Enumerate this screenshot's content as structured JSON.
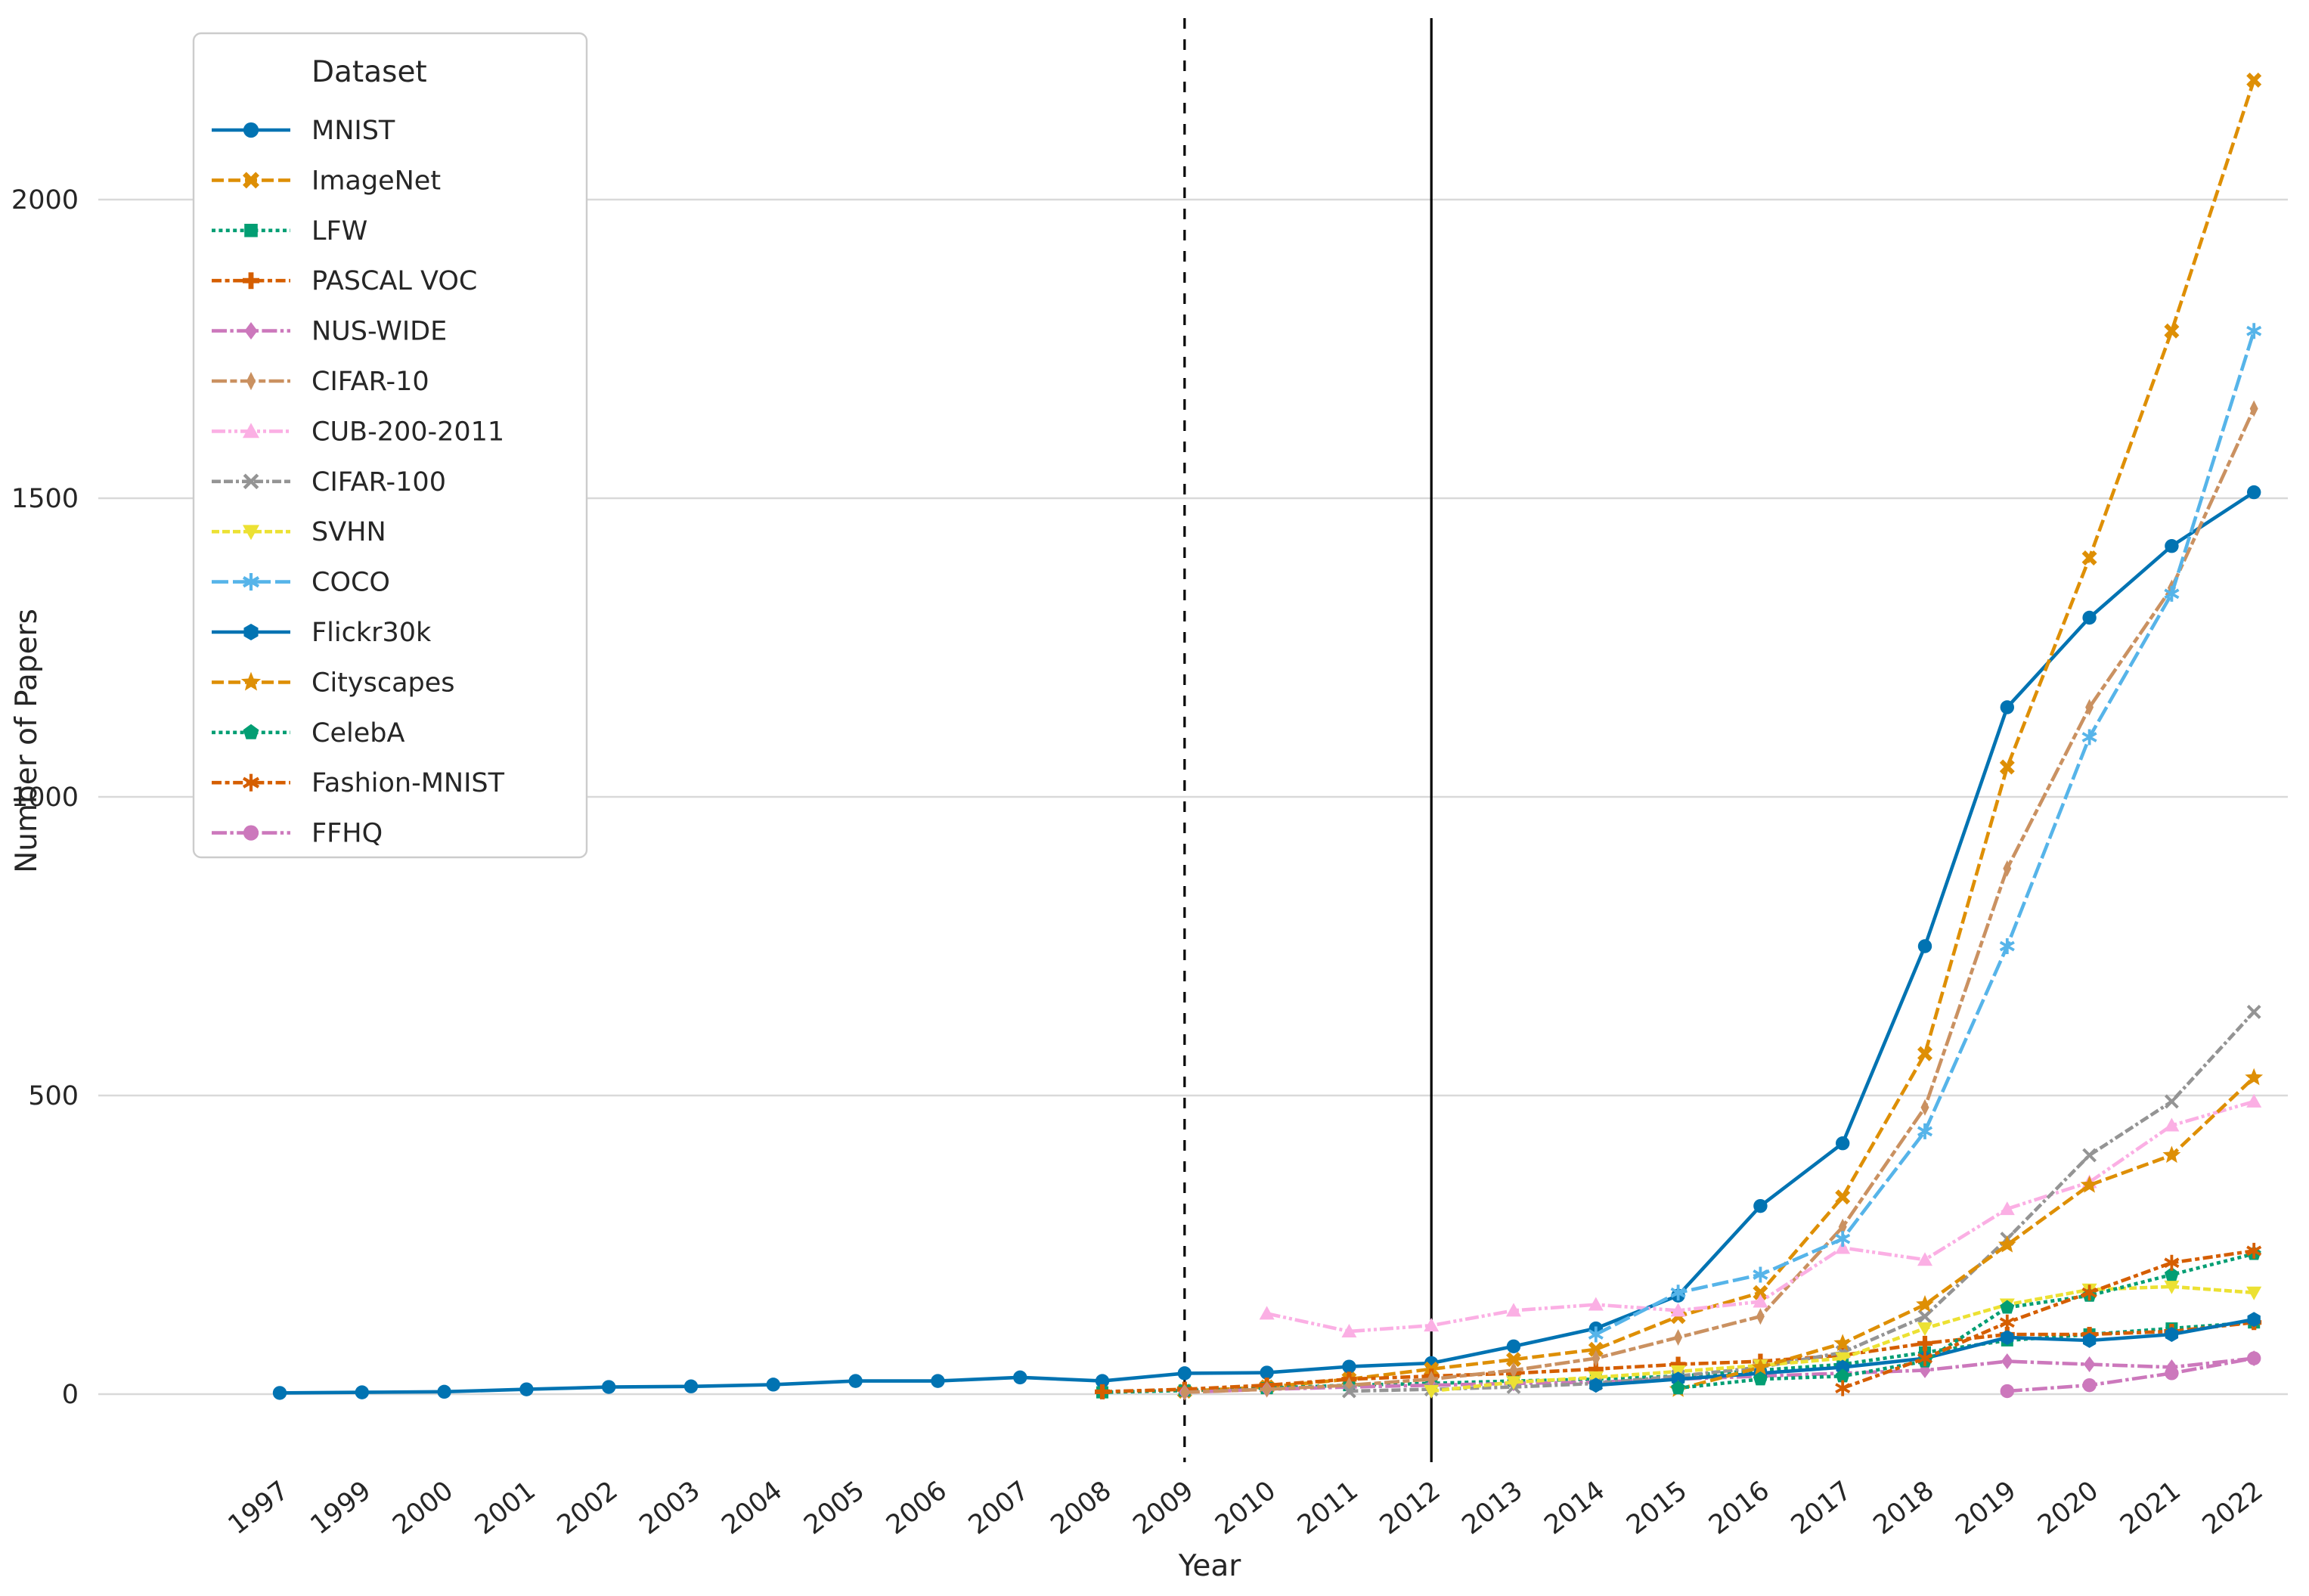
{
  "chart_data": {
    "type": "line",
    "title": "",
    "xlabel": "Year",
    "ylabel": "Number of Papers",
    "legend_title": "Dataset",
    "legend_position": "upper left",
    "grid": "horizontal",
    "x": [
      "1997",
      "1999",
      "2000",
      "2001",
      "2002",
      "2003",
      "2004",
      "2005",
      "2006",
      "2007",
      "2008",
      "2009",
      "2010",
      "2011",
      "2012",
      "2013",
      "2014",
      "2015",
      "2016",
      "2017",
      "2018",
      "2019",
      "2020",
      "2021",
      "2022"
    ],
    "yticks": [
      0,
      500,
      1000,
      1500,
      2000
    ],
    "ylim": [
      -110,
      2320
    ],
    "vlines": [
      {
        "x": "2009",
        "style": "dashed",
        "color": "#000000"
      },
      {
        "x": "2012",
        "style": "solid",
        "color": "#000000"
      }
    ],
    "style": {
      "background": "#ffffff",
      "grid_color": "#d9d9d9",
      "text_color": "#262626",
      "vline_color": "#000000"
    },
    "series": [
      {
        "name": "MNIST",
        "color": "#0173b2",
        "marker": "circle",
        "dash": "",
        "values": [
          2,
          3,
          4,
          8,
          12,
          13,
          16,
          22,
          22,
          28,
          22,
          35,
          36,
          46,
          52,
          80,
          110,
          165,
          315,
          420,
          750,
          1150,
          1300,
          1420,
          1510
        ]
      },
      {
        "name": "ImageNet",
        "color": "#de8f05",
        "marker": "X",
        "dash": "8,3",
        "values": [
          null,
          null,
          null,
          null,
          null,
          null,
          null,
          null,
          null,
          null,
          null,
          5,
          12,
          25,
          42,
          58,
          75,
          130,
          170,
          330,
          570,
          1050,
          1400,
          1780,
          2200
        ]
      },
      {
        "name": "LFW",
        "color": "#029e73",
        "marker": "square",
        "dash": "2.5,2.2",
        "values": [
          null,
          null,
          null,
          null,
          null,
          null,
          null,
          null,
          null,
          null,
          3,
          6,
          10,
          15,
          18,
          22,
          25,
          30,
          40,
          50,
          70,
          90,
          100,
          110,
          120
        ]
      },
      {
        "name": "PASCAL VOC",
        "color": "#d55e00",
        "marker": "plus",
        "dash": "6.5,2.3,3,2.3",
        "values": [
          null,
          null,
          null,
          null,
          null,
          null,
          null,
          null,
          null,
          null,
          4,
          8,
          15,
          25,
          30,
          35,
          42,
          50,
          55,
          65,
          85,
          100,
          100,
          105,
          120
        ]
      },
      {
        "name": "NUS-WIDE",
        "color": "#cc78bc",
        "marker": "diamond",
        "dash": "10,2.2,2.2,2.2",
        "values": [
          null,
          null,
          null,
          null,
          null,
          null,
          null,
          null,
          null,
          null,
          null,
          3,
          8,
          12,
          15,
          18,
          20,
          25,
          30,
          35,
          40,
          55,
          50,
          45,
          60
        ]
      },
      {
        "name": "CIFAR-10",
        "color": "#ca9161",
        "marker": "thin-diamond",
        "dash": "10,2.2,4.5,2.2",
        "values": [
          null,
          null,
          null,
          null,
          null,
          null,
          null,
          null,
          null,
          null,
          null,
          3,
          8,
          15,
          25,
          40,
          60,
          95,
          130,
          280,
          480,
          880,
          1150,
          1350,
          1650
        ]
      },
      {
        "name": "CUB-200-2011",
        "color": "#fbafe4",
        "marker": "triangle-up",
        "dash": "9,2,2,2,2,2",
        "values": [
          null,
          null,
          null,
          null,
          null,
          null,
          null,
          null,
          null,
          null,
          null,
          null,
          135,
          105,
          115,
          140,
          150,
          140,
          155,
          245,
          225,
          310,
          355,
          450,
          490
        ]
      },
      {
        "name": "CIFAR-100",
        "color": "#949494",
        "marker": "x",
        "dash": "6,2,6,2,2,2",
        "values": [
          null,
          null,
          null,
          null,
          null,
          null,
          null,
          null,
          null,
          null,
          null,
          null,
          null,
          5,
          8,
          12,
          18,
          30,
          45,
          70,
          130,
          260,
          400,
          490,
          640
        ]
      },
      {
        "name": "SVHN",
        "color": "#ece133",
        "marker": "triangle-down",
        "dash": "5,2",
        "values": [
          null,
          null,
          null,
          null,
          null,
          null,
          null,
          null,
          null,
          null,
          null,
          null,
          null,
          null,
          5,
          20,
          28,
          38,
          48,
          60,
          110,
          150,
          175,
          180,
          170
        ]
      },
      {
        "name": "COCO",
        "color": "#56b4e9",
        "marker": "asterisk",
        "dash": "11,3",
        "values": [
          null,
          null,
          null,
          null,
          null,
          null,
          null,
          null,
          null,
          null,
          null,
          null,
          null,
          null,
          null,
          null,
          100,
          170,
          200,
          260,
          440,
          750,
          1100,
          1340,
          1780
        ]
      },
      {
        "name": "Flickr30k",
        "color": "#0173b2",
        "marker": "hexagon",
        "dash": "",
        "values": [
          null,
          null,
          null,
          null,
          null,
          null,
          null,
          null,
          null,
          null,
          null,
          null,
          null,
          null,
          null,
          null,
          15,
          25,
          35,
          45,
          60,
          95,
          90,
          100,
          125
        ]
      },
      {
        "name": "Cityscapes",
        "color": "#de8f05",
        "marker": "star5",
        "dash": "8,3",
        "values": [
          null,
          null,
          null,
          null,
          null,
          null,
          null,
          null,
          null,
          null,
          null,
          null,
          null,
          null,
          null,
          null,
          null,
          8,
          45,
          85,
          150,
          250,
          350,
          400,
          530
        ]
      },
      {
        "name": "CelebA",
        "color": "#029e73",
        "marker": "pentagon",
        "dash": "2.5,2.2",
        "values": [
          null,
          null,
          null,
          null,
          null,
          null,
          null,
          null,
          null,
          null,
          null,
          null,
          null,
          null,
          null,
          null,
          null,
          10,
          25,
          30,
          55,
          145,
          165,
          200,
          235
        ]
      },
      {
        "name": "Fashion-MNIST",
        "color": "#d55e00",
        "marker": "asterisk",
        "dash": "6.5,2.3,3,2.3",
        "values": [
          null,
          null,
          null,
          null,
          null,
          null,
          null,
          null,
          null,
          null,
          null,
          null,
          null,
          null,
          null,
          null,
          null,
          null,
          null,
          10,
          60,
          120,
          170,
          220,
          240
        ]
      },
      {
        "name": "FFHQ",
        "color": "#cc78bc",
        "marker": "circle",
        "dash": "10,2.2,2.2,2.2",
        "values": [
          null,
          null,
          null,
          null,
          null,
          null,
          null,
          null,
          null,
          null,
          null,
          null,
          null,
          null,
          null,
          null,
          null,
          null,
          null,
          null,
          null,
          5,
          15,
          35,
          60
        ]
      }
    ]
  }
}
